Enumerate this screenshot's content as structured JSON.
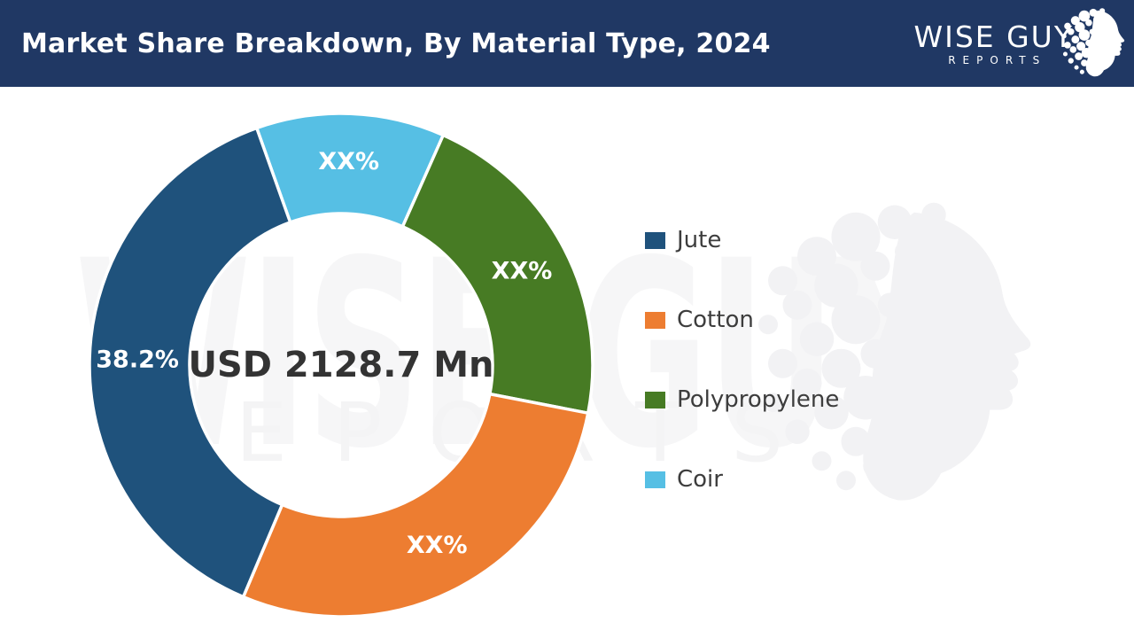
{
  "header": {
    "title": "Market Share Breakdown, By Material Type, 2024",
    "logo": {
      "line1": "WISE GUY",
      "line2": "REPORTS"
    }
  },
  "watermark": {
    "line1": "WISE GUY",
    "line2": "REPORTS"
  },
  "chart_data": {
    "type": "pie",
    "variant": "donut",
    "title": "Market Share Breakdown, By Material Type, 2024",
    "center_label": "USD 2128.7 Mn",
    "start_angle_deg": -19.6,
    "unit": "percent",
    "segments": [
      {
        "name": "Coir",
        "label": "XX%",
        "value": 12.1,
        "color": "#56BFE4"
      },
      {
        "name": "Polypropylene",
        "label": "XX%",
        "value": 21.4,
        "color": "#477B24"
      },
      {
        "name": "Cotton",
        "label": "XX%",
        "value": 28.3,
        "color": "#ED7D31"
      },
      {
        "name": "Jute",
        "label": "38.2%",
        "value": 38.2,
        "color": "#1F527C"
      }
    ],
    "legend_position": "right"
  },
  "legend": {
    "items": [
      {
        "label": "Jute",
        "color": "#1F527C"
      },
      {
        "label": "Cotton",
        "color": "#ED7D31"
      },
      {
        "label": "Polypropylene",
        "color": "#477B24"
      },
      {
        "label": "Coir",
        "color": "#56BFE4"
      }
    ]
  },
  "colors": {
    "header_bg": "#203864",
    "title_text": "#FFFFFF",
    "center_text": "#333333",
    "legend_text": "#3D3D3D",
    "watermark": "#F4F4F5",
    "segment_separator": "#FFFFFF"
  }
}
